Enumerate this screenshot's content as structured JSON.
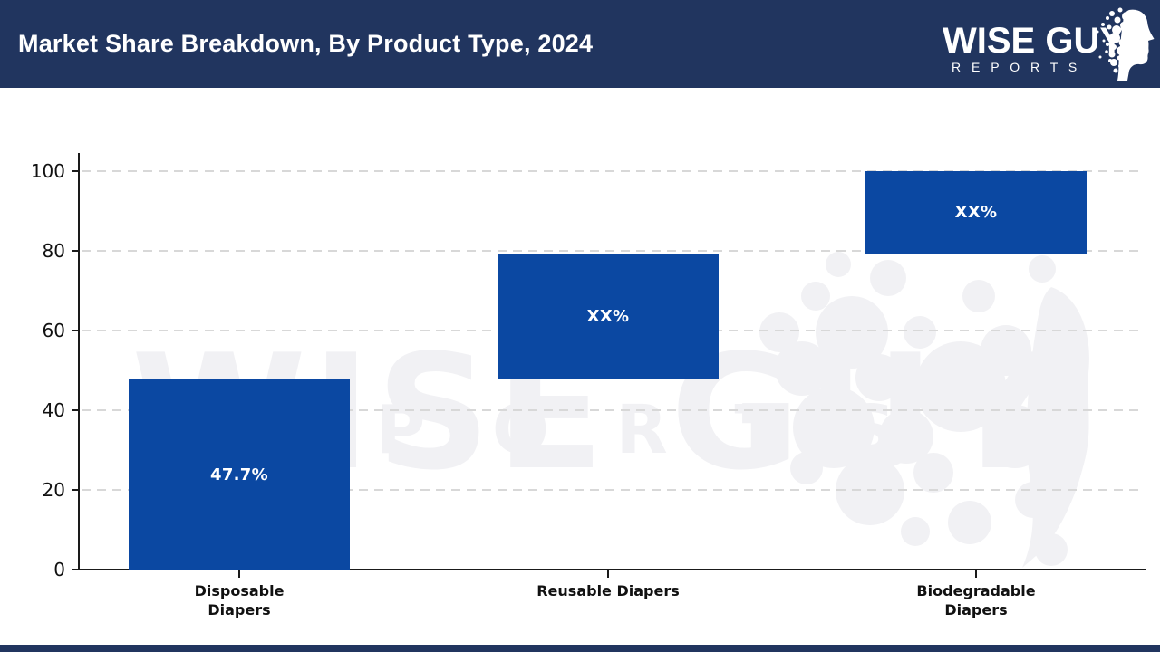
{
  "header": {
    "title": "Market Share Breakdown, By Product Type, 2024",
    "bg_color": "#21355f",
    "logo": {
      "line1": "WISE GUY",
      "line2": "R E P O R T S"
    }
  },
  "watermark": {
    "line1": "WISE GUY",
    "line2": "R E P O R T S"
  },
  "chart_data": {
    "type": "bar",
    "subtype": "waterfall",
    "title": "Market Share Breakdown, By Product Type, 2024",
    "categories": [
      "Disposable Diapers",
      "Reusable Diapers",
      "Biodegradable Diapers"
    ],
    "bars": [
      {
        "category": "Disposable Diapers",
        "start": 0,
        "end": 47.7,
        "label": "47.7%"
      },
      {
        "category": "Reusable Diapers",
        "start": 47.7,
        "end": 79.2,
        "label": "XX%"
      },
      {
        "category": "Biodegradable Diapers",
        "start": 79.2,
        "end": 100,
        "label": "XX%"
      }
    ],
    "xlabel": "",
    "ylabel": "",
    "ylim": [
      0,
      100
    ],
    "yticks": [
      0,
      20,
      40,
      60,
      80,
      100
    ],
    "grid": "horizontal-dashed",
    "grid_color": "#d8d8d8",
    "bar_color": "#0b48a2",
    "bar_label_color": "#ffffff",
    "legend": "none"
  }
}
